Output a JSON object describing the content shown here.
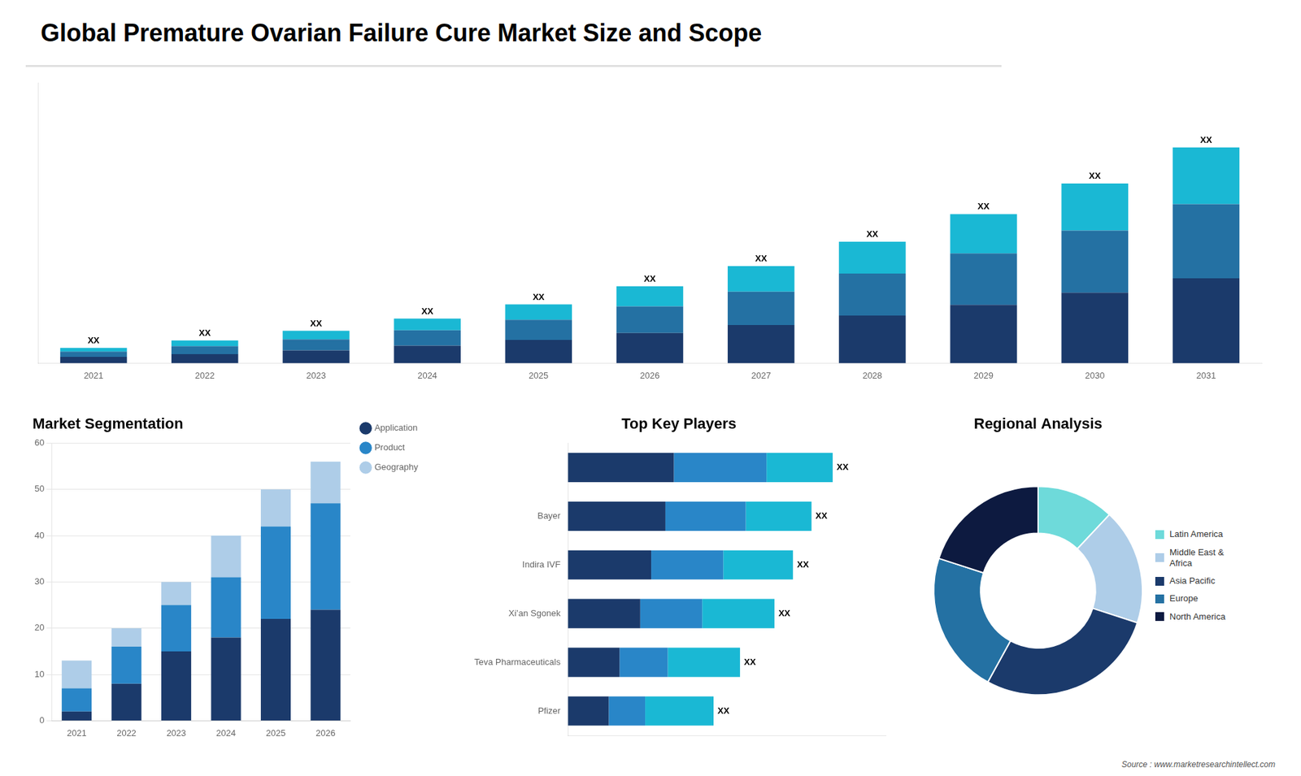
{
  "title": "Global Premature Ovarian Failure Cure Market Size and Scope",
  "annotations": [
    {
      "text": "Source : www.marketresearchintellect.com"
    }
  ],
  "chart_data": [
    {
      "type": "bar",
      "stacked": true,
      "categories": [
        "2021",
        "2022",
        "2023",
        "2024",
        "2025",
        "2026",
        "2027",
        "2028",
        "2029",
        "2030",
        "2031"
      ],
      "series": [
        {
          "color": "#1b3a6b",
          "values": [
            1.2,
            1.7,
            2.4,
            3.3,
            4.4,
            5.7,
            7.2,
            9.0,
            11.0,
            13.3,
            16.0
          ]
        },
        {
          "color": "#2471a3",
          "values": [
            1.0,
            1.5,
            2.1,
            2.9,
            3.8,
            5.0,
            6.3,
            7.9,
            9.7,
            11.7,
            14.0
          ]
        },
        {
          "color": "#1ab8d4",
          "values": [
            0.7,
            1.1,
            1.6,
            2.2,
            2.9,
            3.8,
            4.8,
            6.0,
            7.4,
            8.9,
            10.7
          ]
        }
      ],
      "ylim": [
        0,
        52.91
      ],
      "yticks": [],
      "tick_labels": "x",
      "grid": false,
      "annotations": [
        {
          "text": "XX",
          "value": 2.9
        },
        {
          "text": "XX",
          "value": 4.3
        },
        {
          "text": "XX",
          "value": 6.1
        },
        {
          "text": "XX",
          "value": 8.4
        },
        {
          "text": "XX",
          "value": 11.1
        },
        {
          "text": "XX",
          "value": 14.5
        },
        {
          "text": "XX",
          "value": 18.3
        },
        {
          "text": "XX",
          "value": 22.9
        },
        {
          "text": "XX",
          "value": 28.1
        },
        {
          "text": "XX",
          "value": 33.9
        },
        {
          "text": "XX",
          "value": 40.7
        }
      ]
    },
    {
      "type": "bar",
      "title": "Market Segmentation",
      "stacked": true,
      "categories": [
        "2021",
        "2022",
        "2023",
        "2024",
        "2025",
        "2026"
      ],
      "series": [
        {
          "name": "Application",
          "color": "#1b3a6b",
          "marker": "circle",
          "values": [
            2,
            8,
            15,
            18,
            22,
            24
          ]
        },
        {
          "name": "Product",
          "color": "#2986c8",
          "marker": "circle",
          "values": [
            5,
            8,
            10,
            13,
            20,
            23
          ]
        },
        {
          "name": "Geography",
          "color": "#aecde8",
          "marker": "circle",
          "values": [
            6,
            4,
            5,
            9,
            8,
            9
          ]
        }
      ],
      "ylim": [
        0,
        60
      ],
      "yticks": [
        0,
        10,
        20,
        30,
        40,
        50,
        60
      ],
      "grid": true,
      "legend": "right"
    },
    {
      "type": "bar",
      "title": "Top Key Players",
      "orientation": "horizontal",
      "stacked": true,
      "categories": [
        null,
        "Bayer",
        "Indira IVF",
        "Xi’an Sgonek",
        "Teva Pharmaceuticals",
        "Pfizer"
      ],
      "series": [
        {
          "color": "#1b3a6b",
          "values": [
            40,
            36.8,
            31.45,
            27.3,
            19.5,
            15.4
          ]
        },
        {
          "color": "#2986c8",
          "values": [
            35,
            30.36,
            27.2,
            23.4,
            18.2,
            13.75
          ]
        },
        {
          "color": "#1ab8d4",
          "values": [
            25,
            24.84,
            26.35,
            27.3,
            27.3,
            25.85
          ]
        }
      ],
      "xlim": [
        0,
        120
      ],
      "xticks": [],
      "tick_labels": "y",
      "grid": false,
      "annotations": [
        {
          "text": "XX",
          "value": 100
        },
        {
          "text": "XX",
          "value": 92
        },
        {
          "text": "XX",
          "value": 85
        },
        {
          "text": "XX",
          "value": 78
        },
        {
          "text": "XX",
          "value": 65
        },
        {
          "text": "XX",
          "value": 55
        }
      ]
    },
    {
      "type": "doughnut",
      "title": "Regional Analysis",
      "categories": [
        "Latin America",
        "Middle East &\nAfrica",
        "Asia Pacific",
        "Europe",
        "North America"
      ],
      "values": [
        12,
        18,
        28,
        22,
        20
      ],
      "colors": [
        "#6edada",
        "#aecde8",
        "#1b3a6b",
        "#2471a3",
        "#0d1a40"
      ],
      "legend": "right"
    }
  ]
}
